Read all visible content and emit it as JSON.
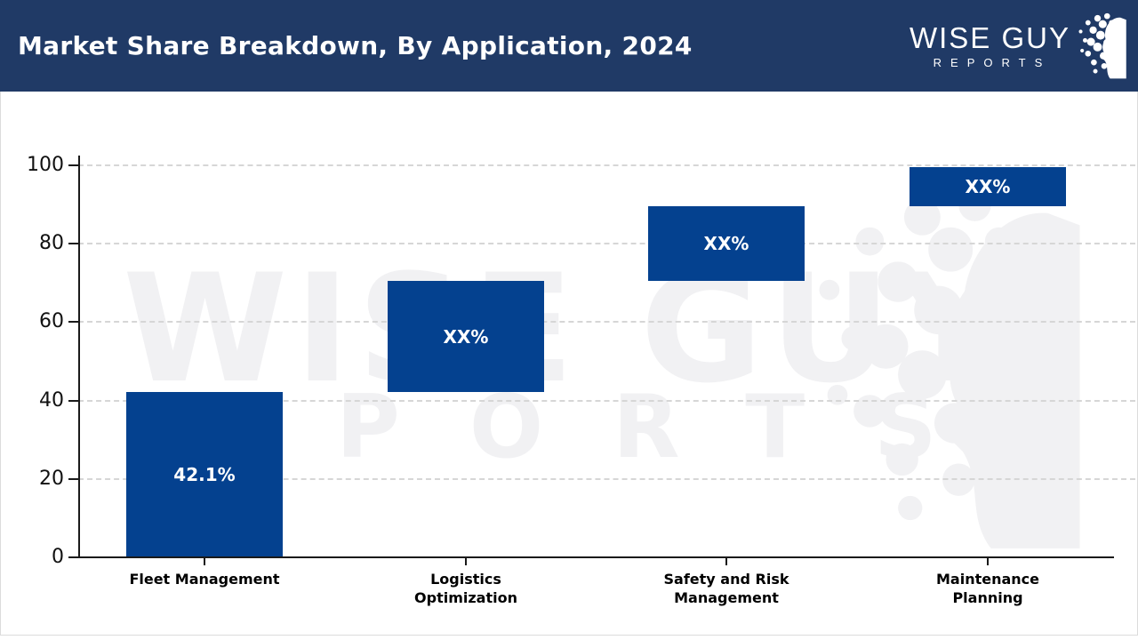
{
  "header": {
    "title": "Market Share Breakdown, By Application, 2024",
    "logo": {
      "wordmark": "WISE GUY",
      "subtext": "REPORTS",
      "face_icon": "dotted-face-profile"
    }
  },
  "watermark": {
    "wordmark": "WISE GUY",
    "subtext": "PORTS",
    "face_icon": "dotted-face-profile"
  },
  "chart_data": {
    "type": "bar",
    "subtype": "floating-waterfall-bars",
    "title": "Market Share Breakdown, By Application, 2024",
    "xlabel": "",
    "ylabel": "",
    "categories": [
      "Fleet Management",
      "Logistics Optimization",
      "Safety and Risk Management",
      "Maintenance Planning"
    ],
    "category_label_lines": [
      [
        "Fleet Management"
      ],
      [
        "Logistics",
        "Optimization"
      ],
      [
        "Safety and Risk",
        "Management"
      ],
      [
        "Maintenance",
        "Planning"
      ]
    ],
    "series": [
      {
        "name": "Market Share (%)",
        "segments": [
          {
            "category": "Fleet Management",
            "start": 0,
            "end": 42.1,
            "value_label": "42.1%"
          },
          {
            "category": "Logistics Optimization",
            "start": 42.1,
            "end": 70.5,
            "value_label": "XX%"
          },
          {
            "category": "Safety and Risk Management",
            "start": 70.5,
            "end": 89.6,
            "value_label": "XX%"
          },
          {
            "category": "Maintenance Planning",
            "start": 89.6,
            "end": 99.6,
            "value_label": "XX%"
          }
        ]
      }
    ],
    "yticks": [
      0,
      20,
      40,
      60,
      80,
      100
    ],
    "ylim": [
      0,
      102.5
    ],
    "grid": "dashed-horizontal",
    "legend": "none",
    "bar_color": "#04418f",
    "value_label_color": "#ffffff"
  },
  "colors": {
    "header_bg": "#203a66",
    "header_text": "#ffffff",
    "bar": "#04418f",
    "axis": "#1a1a1a",
    "gridline": "#d6d6d6",
    "tick_label": "#111111",
    "watermark": "#f1f1f3",
    "chart_border": "#dcdcdc",
    "background": "#ffffff"
  }
}
